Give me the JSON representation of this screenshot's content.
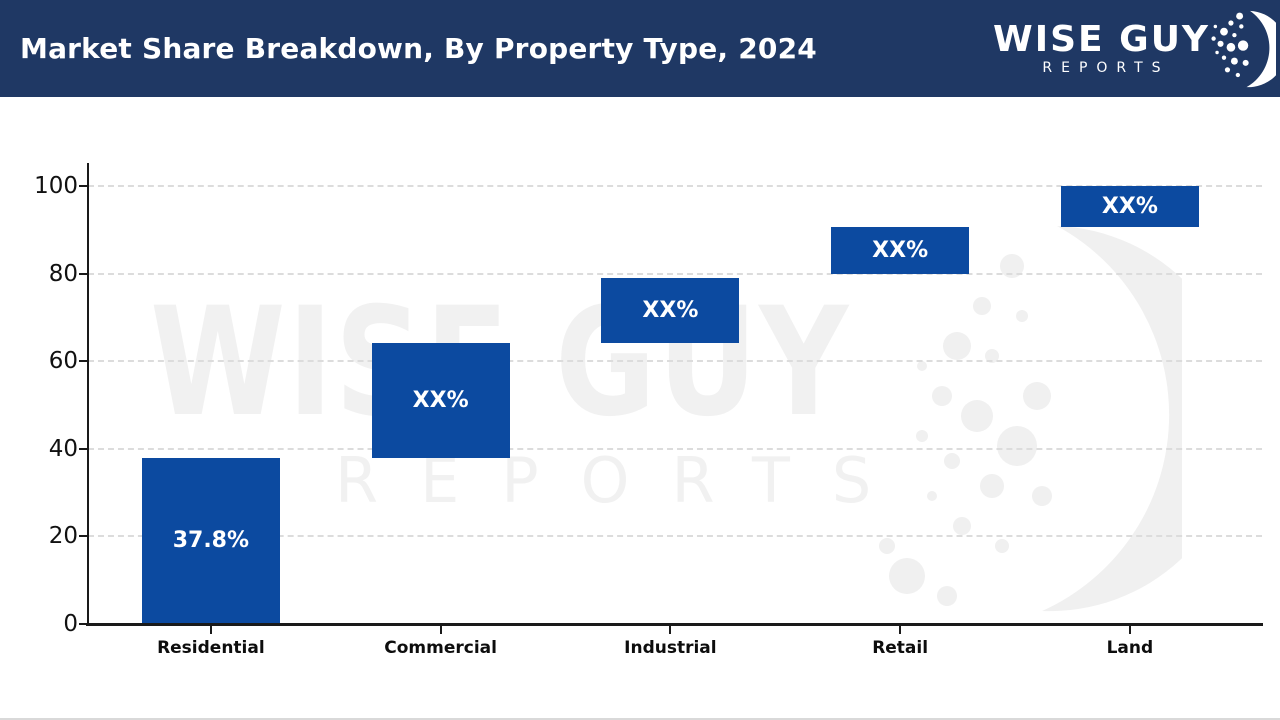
{
  "header": {
    "title": "Market Share Breakdown, By Property Type, 2024",
    "bg_color": "#1f3864",
    "logo": {
      "line1": "WISE GUY",
      "line2": "REPORTS"
    }
  },
  "watermark": {
    "line1": "WISE GUY",
    "line2": "REPORTS"
  },
  "chart_data": {
    "type": "bar",
    "subtype": "waterfall",
    "title": "Market Share Breakdown, By Property Type, 2024",
    "categories": [
      "Residential",
      "Commercial",
      "Industrial",
      "Retail",
      "Land"
    ],
    "segments": [
      {
        "category": "Residential",
        "start": 0,
        "end": 37.8,
        "label": "37.8%"
      },
      {
        "category": "Commercial",
        "start": 37.8,
        "end": 64.1,
        "label": "XX%"
      },
      {
        "category": "Industrial",
        "start": 64.1,
        "end": 78.9,
        "label": "XX%"
      },
      {
        "category": "Retail",
        "start": 79.8,
        "end": 90.6,
        "label": "XX%"
      },
      {
        "category": "Land",
        "start": 90.7,
        "end": 100,
        "label": "XX%"
      }
    ],
    "y_ticks": [
      0,
      20,
      40,
      60,
      80,
      100
    ],
    "ylim": [
      0,
      105
    ],
    "xlabel": "",
    "ylabel": "",
    "legend": "none",
    "grid": "horizontal-dashed",
    "bar_color": "#0c4aa0",
    "bar_label_color": "#ffffff",
    "gridline_color": "#dcdcdc",
    "axis_color": "#1a1a1a"
  }
}
